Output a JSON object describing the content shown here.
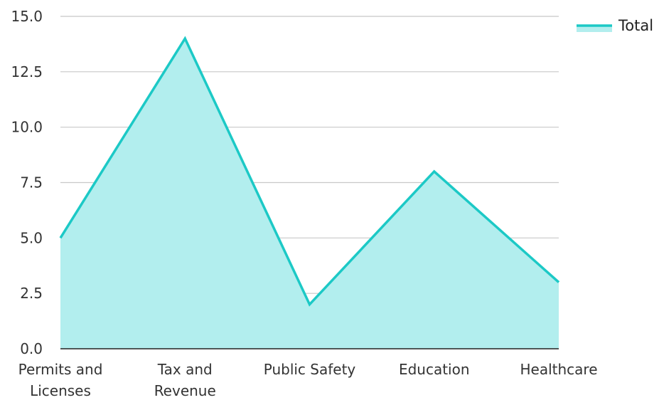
{
  "chart_data": {
    "type": "area",
    "categories": [
      [
        "Permits and",
        "Licenses"
      ],
      [
        "Tax and",
        "Revenue"
      ],
      [
        "Public Safety"
      ],
      [
        "Education"
      ],
      [
        "Healthcare"
      ]
    ],
    "series": [
      {
        "name": "Total",
        "values": [
          5,
          14,
          2,
          8,
          3
        ]
      }
    ],
    "ylim": [
      0,
      15
    ],
    "yticks": [
      "0.0",
      "2.5",
      "5.0",
      "7.5",
      "10.0",
      "12.5",
      "15.0"
    ],
    "ytick_values": [
      0,
      2.5,
      5,
      7.5,
      10,
      12.5,
      15
    ],
    "grid": true,
    "legend_position": "top-right",
    "colors": {
      "line": "#1cc9c6",
      "fill": "#b2eeee",
      "grid": "#c8c8c8",
      "axis": "#222222"
    }
  }
}
